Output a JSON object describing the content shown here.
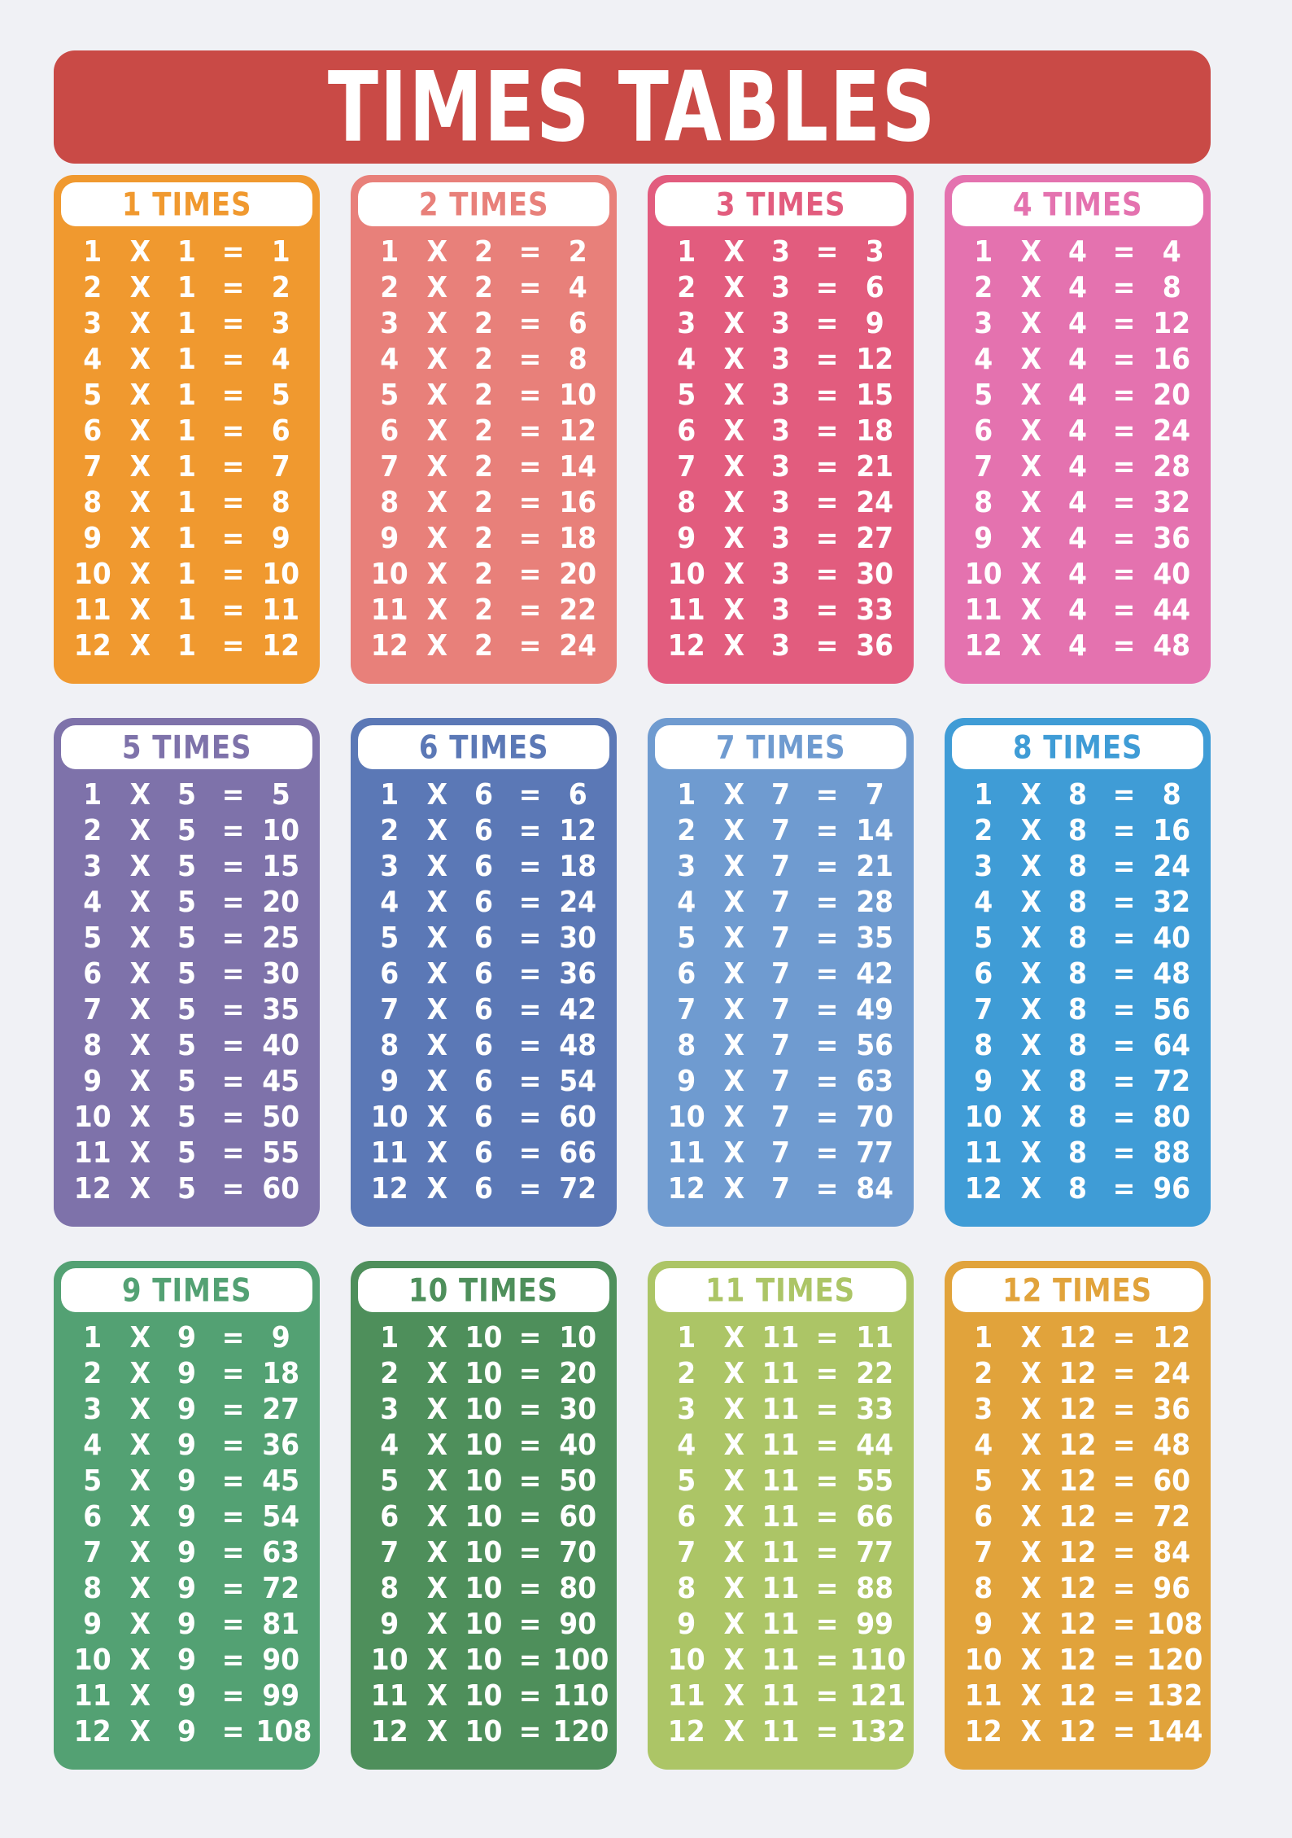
{
  "title": "TIMES TABLES",
  "banner_color": "#c94a46",
  "page_background": "#f0f1f5",
  "operator": "X",
  "equals": "=",
  "tables": [
    {
      "label": "1 TIMES",
      "color": "#f0992f",
      "rows": [
        [
          1,
          1,
          1
        ],
        [
          2,
          1,
          2
        ],
        [
          3,
          1,
          3
        ],
        [
          4,
          1,
          4
        ],
        [
          5,
          1,
          5
        ],
        [
          6,
          1,
          6
        ],
        [
          7,
          1,
          7
        ],
        [
          8,
          1,
          8
        ],
        [
          9,
          1,
          9
        ],
        [
          10,
          1,
          10
        ],
        [
          11,
          1,
          11
        ],
        [
          12,
          1,
          12
        ]
      ]
    },
    {
      "label": "2 TIMES",
      "color": "#e8807a",
      "rows": [
        [
          1,
          2,
          2
        ],
        [
          2,
          2,
          4
        ],
        [
          3,
          2,
          6
        ],
        [
          4,
          2,
          8
        ],
        [
          5,
          2,
          10
        ],
        [
          6,
          2,
          12
        ],
        [
          7,
          2,
          14
        ],
        [
          8,
          2,
          16
        ],
        [
          9,
          2,
          18
        ],
        [
          10,
          2,
          20
        ],
        [
          11,
          2,
          22
        ],
        [
          12,
          2,
          24
        ]
      ]
    },
    {
      "label": "3 TIMES",
      "color": "#e25c7e",
      "rows": [
        [
          1,
          3,
          3
        ],
        [
          2,
          3,
          6
        ],
        [
          3,
          3,
          9
        ],
        [
          4,
          3,
          12
        ],
        [
          5,
          3,
          15
        ],
        [
          6,
          3,
          18
        ],
        [
          7,
          3,
          21
        ],
        [
          8,
          3,
          24
        ],
        [
          9,
          3,
          27
        ],
        [
          10,
          3,
          30
        ],
        [
          11,
          3,
          33
        ],
        [
          12,
          3,
          36
        ]
      ]
    },
    {
      "label": "4 TIMES",
      "color": "#e472af",
      "rows": [
        [
          1,
          4,
          4
        ],
        [
          2,
          4,
          8
        ],
        [
          3,
          4,
          12
        ],
        [
          4,
          4,
          16
        ],
        [
          5,
          4,
          20
        ],
        [
          6,
          4,
          24
        ],
        [
          7,
          4,
          28
        ],
        [
          8,
          4,
          32
        ],
        [
          9,
          4,
          36
        ],
        [
          10,
          4,
          40
        ],
        [
          11,
          4,
          44
        ],
        [
          12,
          4,
          48
        ]
      ]
    },
    {
      "label": "5 TIMES",
      "color": "#7e72aa",
      "rows": [
        [
          1,
          5,
          5
        ],
        [
          2,
          5,
          10
        ],
        [
          3,
          5,
          15
        ],
        [
          4,
          5,
          20
        ],
        [
          5,
          5,
          25
        ],
        [
          6,
          5,
          30
        ],
        [
          7,
          5,
          35
        ],
        [
          8,
          5,
          40
        ],
        [
          9,
          5,
          45
        ],
        [
          10,
          5,
          50
        ],
        [
          11,
          5,
          55
        ],
        [
          12,
          5,
          60
        ]
      ]
    },
    {
      "label": "6 TIMES",
      "color": "#5b78b6",
      "rows": [
        [
          1,
          6,
          6
        ],
        [
          2,
          6,
          12
        ],
        [
          3,
          6,
          18
        ],
        [
          4,
          6,
          24
        ],
        [
          5,
          6,
          30
        ],
        [
          6,
          6,
          36
        ],
        [
          7,
          6,
          42
        ],
        [
          8,
          6,
          48
        ],
        [
          9,
          6,
          54
        ],
        [
          10,
          6,
          60
        ],
        [
          11,
          6,
          66
        ],
        [
          12,
          6,
          72
        ]
      ]
    },
    {
      "label": "7 TIMES",
      "color": "#6f9bd0",
      "rows": [
        [
          1,
          7,
          7
        ],
        [
          2,
          7,
          14
        ],
        [
          3,
          7,
          21
        ],
        [
          4,
          7,
          28
        ],
        [
          5,
          7,
          35
        ],
        [
          6,
          7,
          42
        ],
        [
          7,
          7,
          49
        ],
        [
          8,
          7,
          56
        ],
        [
          9,
          7,
          63
        ],
        [
          10,
          7,
          70
        ],
        [
          11,
          7,
          77
        ],
        [
          12,
          7,
          84
        ]
      ]
    },
    {
      "label": "8 TIMES",
      "color": "#3f9cd6",
      "rows": [
        [
          1,
          8,
          8
        ],
        [
          2,
          8,
          16
        ],
        [
          3,
          8,
          24
        ],
        [
          4,
          8,
          32
        ],
        [
          5,
          8,
          40
        ],
        [
          6,
          8,
          48
        ],
        [
          7,
          8,
          56
        ],
        [
          8,
          8,
          64
        ],
        [
          9,
          8,
          72
        ],
        [
          10,
          8,
          80
        ],
        [
          11,
          8,
          88
        ],
        [
          12,
          8,
          96
        ]
      ]
    },
    {
      "label": "9 TIMES",
      "color": "#53a173",
      "rows": [
        [
          1,
          9,
          9
        ],
        [
          2,
          9,
          18
        ],
        [
          3,
          9,
          27
        ],
        [
          4,
          9,
          36
        ],
        [
          5,
          9,
          45
        ],
        [
          6,
          9,
          54
        ],
        [
          7,
          9,
          63
        ],
        [
          8,
          9,
          72
        ],
        [
          9,
          9,
          81
        ],
        [
          10,
          9,
          90
        ],
        [
          11,
          9,
          99
        ],
        [
          12,
          9,
          108
        ]
      ]
    },
    {
      "label": "10 TIMES",
      "color": "#4e8f5b",
      "rows": [
        [
          1,
          10,
          10
        ],
        [
          2,
          10,
          20
        ],
        [
          3,
          10,
          30
        ],
        [
          4,
          10,
          40
        ],
        [
          5,
          10,
          50
        ],
        [
          6,
          10,
          60
        ],
        [
          7,
          10,
          70
        ],
        [
          8,
          10,
          80
        ],
        [
          9,
          10,
          90
        ],
        [
          10,
          10,
          100
        ],
        [
          11,
          10,
          110
        ],
        [
          12,
          10,
          120
        ]
      ]
    },
    {
      "label": "11 TIMES",
      "color": "#acc566",
      "rows": [
        [
          1,
          11,
          11
        ],
        [
          2,
          11,
          22
        ],
        [
          3,
          11,
          33
        ],
        [
          4,
          11,
          44
        ],
        [
          5,
          11,
          55
        ],
        [
          6,
          11,
          66
        ],
        [
          7,
          11,
          77
        ],
        [
          8,
          11,
          88
        ],
        [
          9,
          11,
          99
        ],
        [
          10,
          11,
          110
        ],
        [
          11,
          11,
          121
        ],
        [
          12,
          11,
          132
        ]
      ]
    },
    {
      "label": "12 TIMES",
      "color": "#e1a33b",
      "rows": [
        [
          1,
          12,
          12
        ],
        [
          2,
          12,
          24
        ],
        [
          3,
          12,
          36
        ],
        [
          4,
          12,
          48
        ],
        [
          5,
          12,
          60
        ],
        [
          6,
          12,
          72
        ],
        [
          7,
          12,
          84
        ],
        [
          8,
          12,
          96
        ],
        [
          9,
          12,
          108
        ],
        [
          10,
          12,
          120
        ],
        [
          11,
          12,
          132
        ],
        [
          12,
          12,
          144
        ]
      ]
    }
  ]
}
